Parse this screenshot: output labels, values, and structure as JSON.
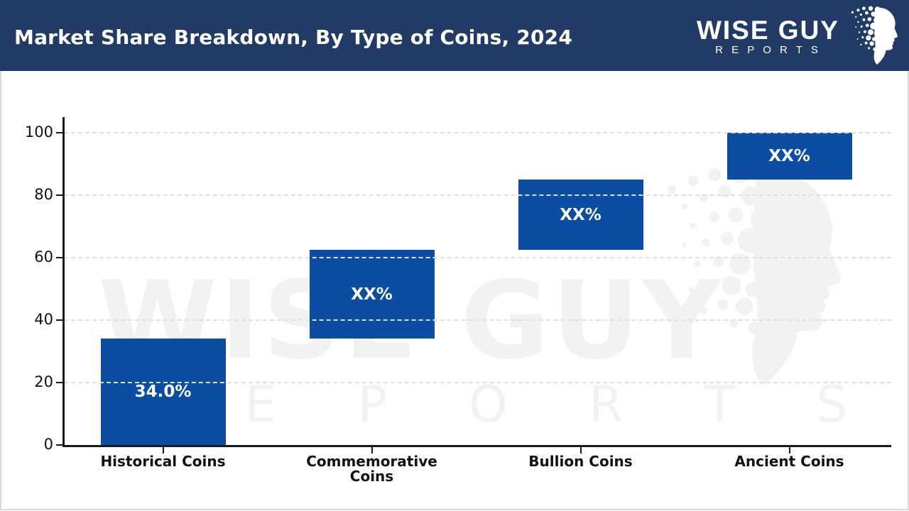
{
  "header": {
    "title": "Market Share Breakdown, By Type of Coins, 2024",
    "bg_color": "#223a66"
  },
  "logo": {
    "line1": "WISE GUY",
    "line2": "R E P O R T S"
  },
  "watermark": {
    "line1": "WISE GUY",
    "line2": "R E P O R T S"
  },
  "chart_data": {
    "type": "bar",
    "subtype": "waterfall",
    "title": "Market Share Breakdown, By Type of Coins, 2024",
    "categories": [
      "Historical Coins",
      "Commemorative Coins",
      "Bullion Coins",
      "Ancient Coins"
    ],
    "category_tick_lines": [
      [
        "Historical Coins"
      ],
      [
        "Commemorative",
        "Coins"
      ],
      [
        "Bullion Coins"
      ],
      [
        "Ancient Coins"
      ]
    ],
    "segments": [
      {
        "category": "Historical Coins",
        "start": 0,
        "end": 34,
        "label": "34.0%"
      },
      {
        "category": "Commemorative Coins",
        "start": 34,
        "end": 62.5,
        "label": "XX%"
      },
      {
        "category": "Bullion Coins",
        "start": 62.5,
        "end": 85,
        "label": "XX%"
      },
      {
        "category": "Ancient Coins",
        "start": 85,
        "end": 100,
        "label": "XX%"
      }
    ],
    "ylim": [
      0,
      100
    ],
    "yticks": [
      0,
      20,
      40,
      60,
      80,
      100
    ],
    "xlabel": "",
    "ylabel": "",
    "grid": "horizontal-dashed",
    "legend": "none",
    "bar_color": "#0b4da2",
    "bar_label_color": "#ffffff",
    "axis_color": "#1a1a1a",
    "gridline_color": "#e0e0e0"
  }
}
